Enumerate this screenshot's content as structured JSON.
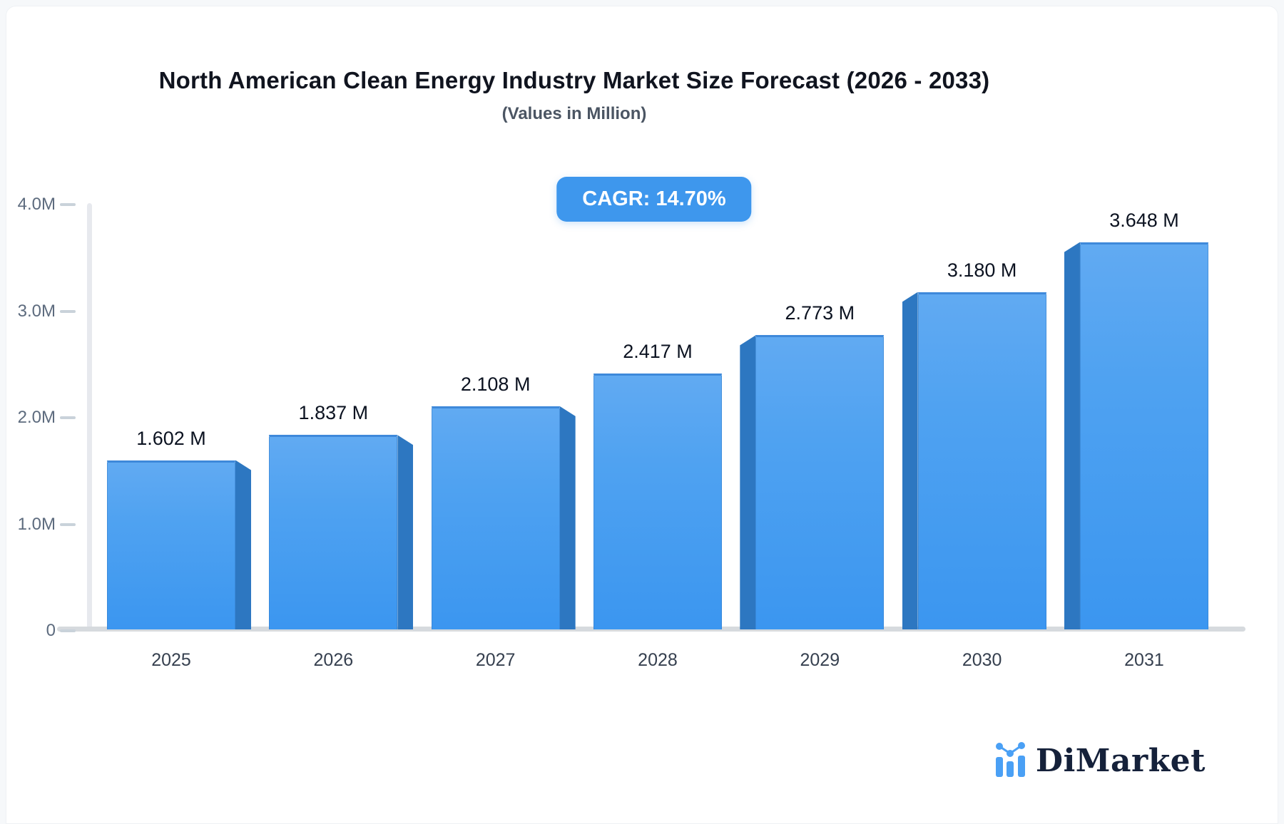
{
  "header": {
    "title": "North American Clean Energy Industry Market Size Forecast (2026 - 2033)",
    "subtitle": "(Values in Million)"
  },
  "badge": {
    "label": "CAGR: 14.70%",
    "bg_color": "#3e97ed",
    "text_color": "#ffffff"
  },
  "chart_data": {
    "type": "bar",
    "title": "North American Clean Energy Industry Market Size Forecast (2026 - 2033)",
    "subtitle": "(Values in Million)",
    "annotation": "CAGR: 14.70%",
    "categories": [
      "2025",
      "2026",
      "2027",
      "2028",
      "2029",
      "2030",
      "2031"
    ],
    "values": [
      1.602,
      1.837,
      2.108,
      2.417,
      2.773,
      3.18,
      3.648
    ],
    "value_labels": [
      "1.602 M",
      "1.837 M",
      "2.108 M",
      "2.417 M",
      "2.773 M",
      "3.180 M",
      "3.648 M"
    ],
    "unit": "Million",
    "ylim": [
      0,
      4
    ],
    "y_tick_labels": [
      "4.0M",
      "3.0M",
      "2.0M",
      "1.0M",
      "0"
    ],
    "y_tick_values": [
      4.0,
      3.0,
      2.0,
      1.0,
      0
    ],
    "grid": false,
    "legend": false,
    "bar_color_top": "#61aaf2",
    "bar_color_bottom": "#3b96f0",
    "bar_side_color": "#2d77c1",
    "axis_line_color": "#e7e9ee",
    "baseline_color": "#d6dade"
  },
  "logo": {
    "text": "DiMarket",
    "icon": "bar-chart-logo-icon",
    "text_color": "#15213a",
    "icon_color": "#4aa0f5"
  }
}
